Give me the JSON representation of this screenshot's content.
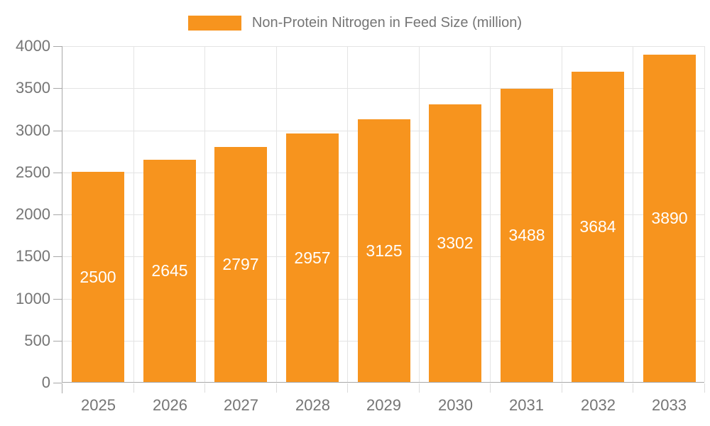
{
  "chart_data": {
    "type": "bar",
    "title": "",
    "categories": [
      "2025",
      "2026",
      "2027",
      "2028",
      "2029",
      "2030",
      "2031",
      "2032",
      "2033"
    ],
    "series": [
      {
        "name": "Non-Protein Nitrogen in Feed Size (million)",
        "values": [
          2500,
          2645,
          2797,
          2957,
          3125,
          3302,
          3488,
          3684,
          3890
        ]
      }
    ],
    "xlabel": "",
    "ylabel": "",
    "ylim": [
      0,
      4000
    ],
    "yticks": [
      0,
      500,
      1000,
      1500,
      2000,
      2500,
      3000,
      3500,
      4000
    ],
    "grid": true,
    "legend_position": "top-center",
    "bar_labels": "inside-center-white"
  },
  "colors": {
    "bar": "#F7941E",
    "bar_label": "#FFFFFF",
    "axis_text": "#757575",
    "axis_line": "#A8A8A8",
    "gridline": "#E4E4E4",
    "tick_light": "#DCDCDC",
    "background": "#FFFFFF"
  }
}
